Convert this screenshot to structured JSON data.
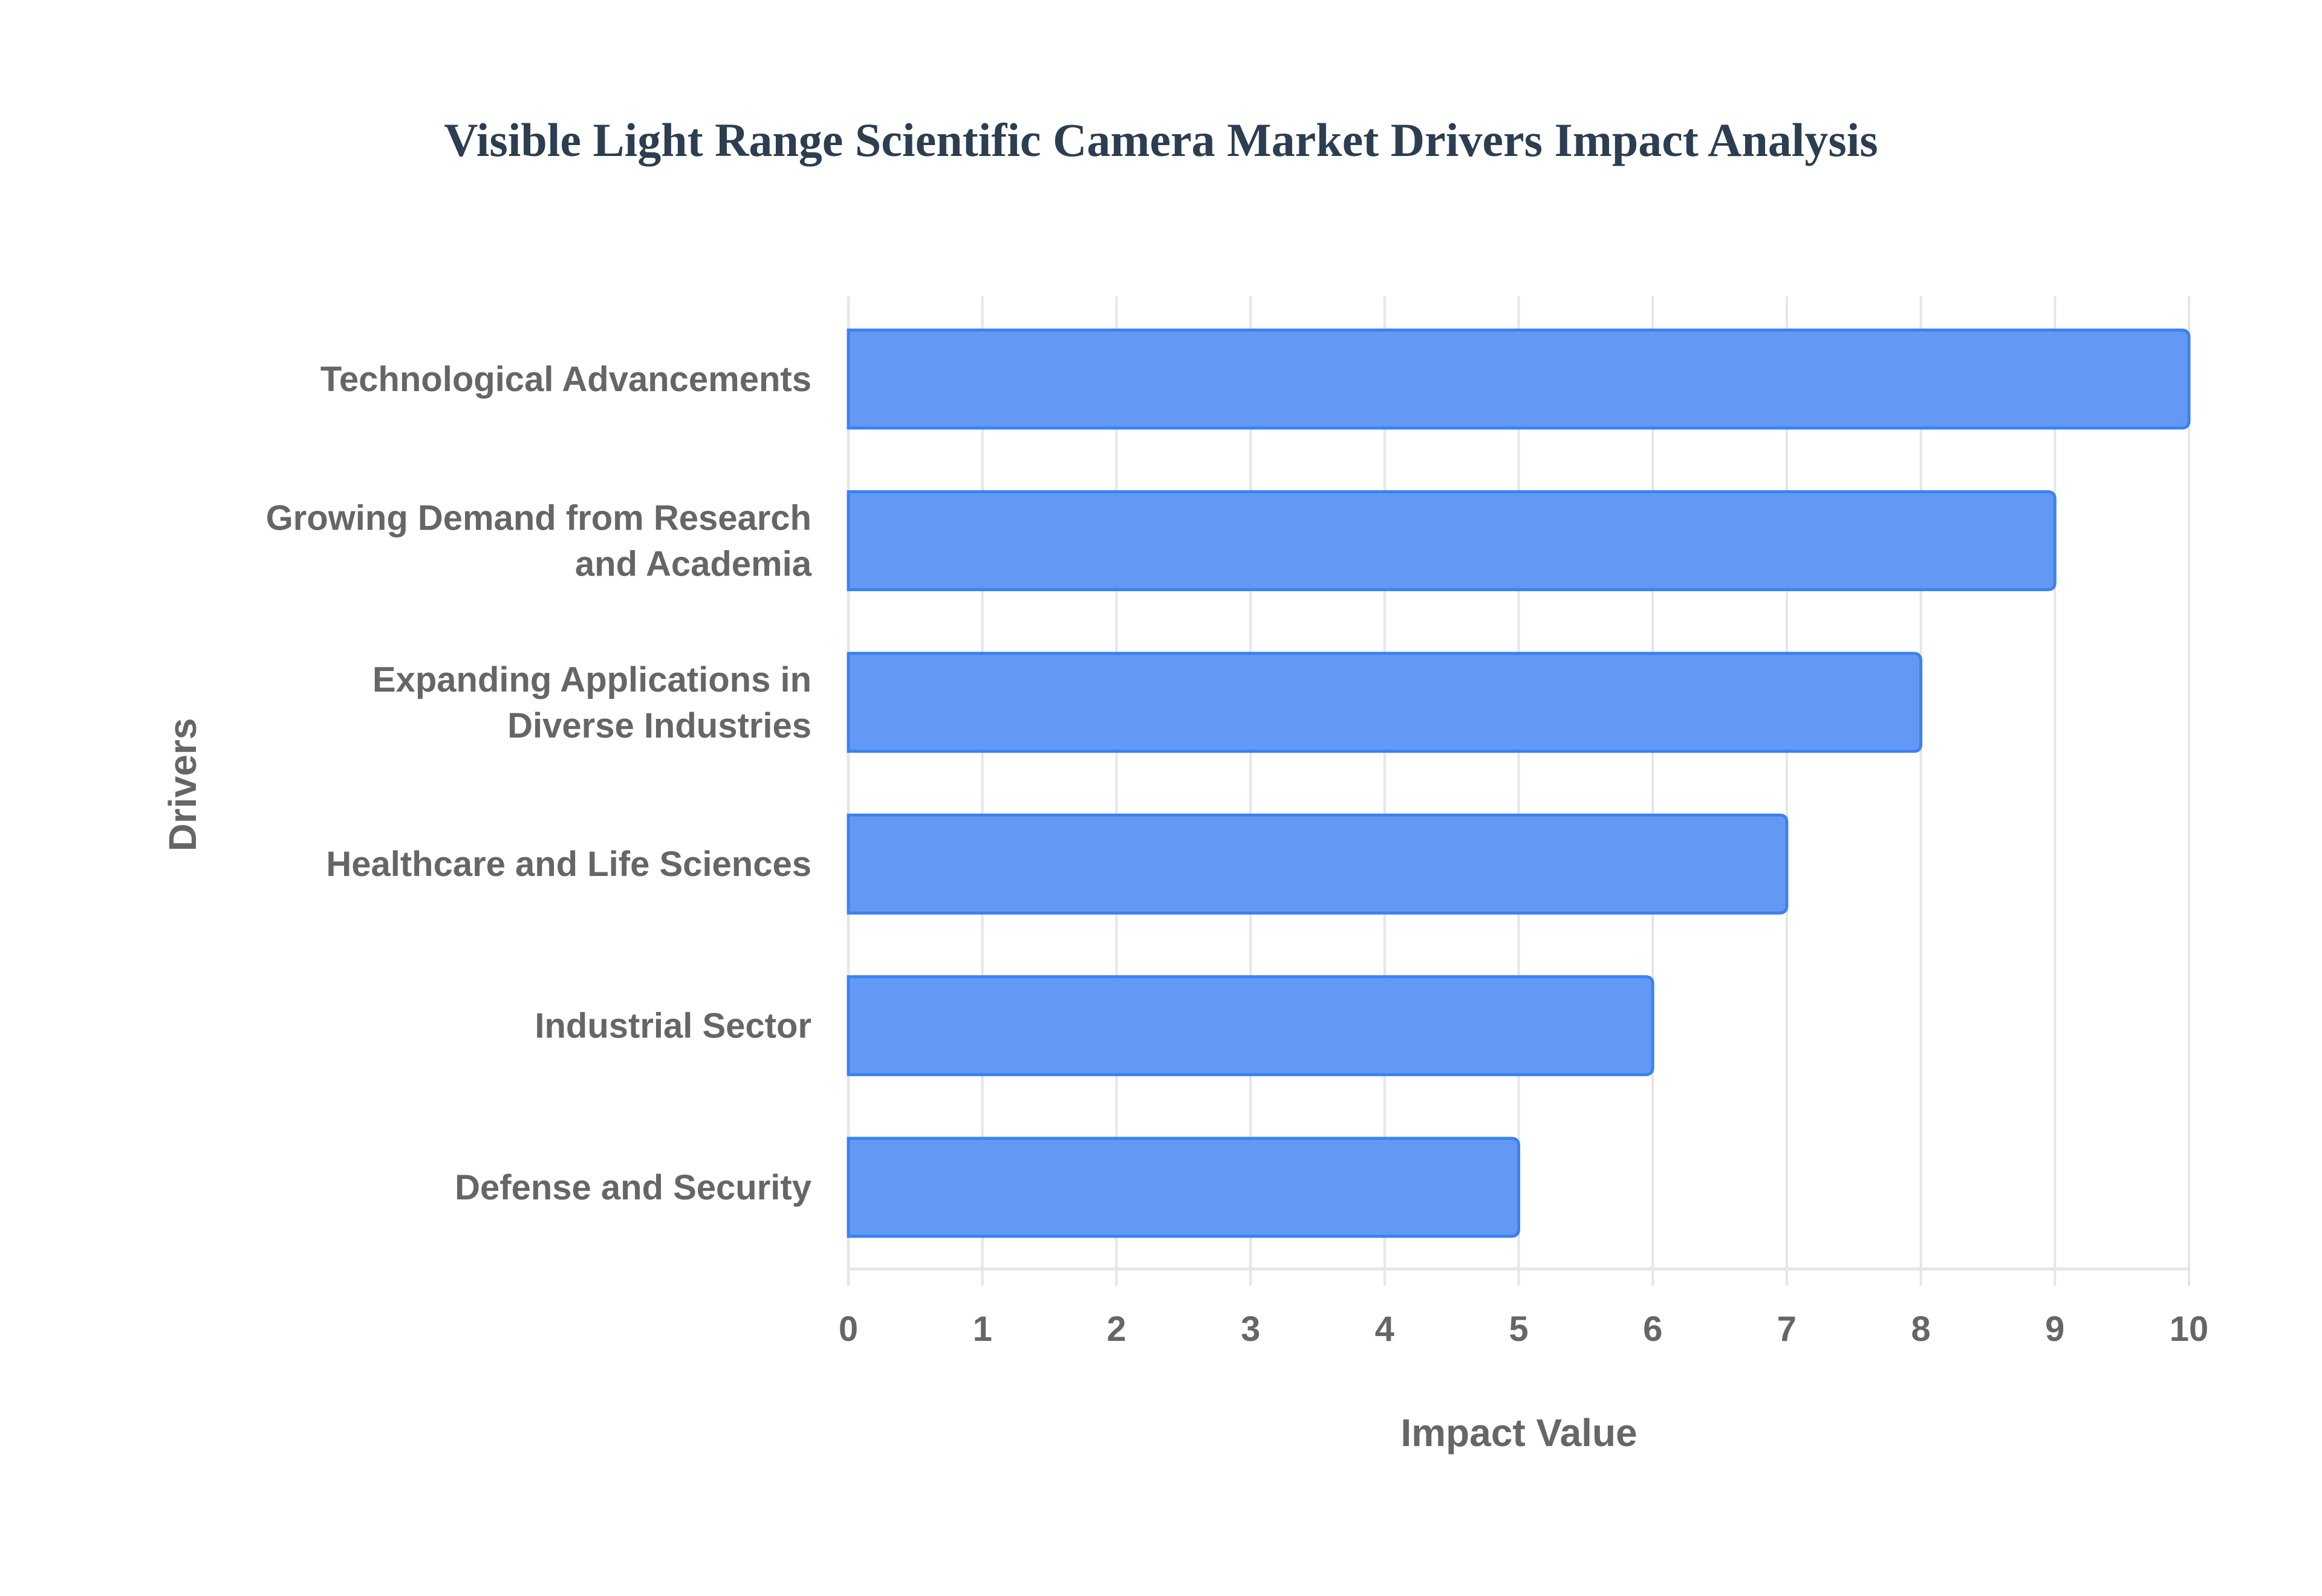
{
  "chart_data": {
    "type": "bar",
    "orientation": "horizontal",
    "title": "Visible Light Range Scientific Camera Market Drivers Impact Analysis",
    "xlabel": "Impact Value",
    "ylabel": "Drivers",
    "categories": [
      [
        "Technological Advancements"
      ],
      [
        "Growing Demand from Research",
        "and Academia"
      ],
      [
        "Expanding Applications in",
        "Diverse Industries"
      ],
      [
        "Healthcare and Life Sciences"
      ],
      [
        "Industrial Sector"
      ],
      [
        "Defense and Security"
      ]
    ],
    "values": [
      10,
      9,
      8,
      7,
      6,
      5
    ],
    "xlim": [
      0,
      10
    ],
    "xticks": [
      "0",
      "1",
      "2",
      "3",
      "4",
      "5",
      "6",
      "7",
      "8",
      "9",
      "10"
    ],
    "grid": true,
    "legend": "none",
    "colors": {
      "bar_fill": "#6399f5",
      "bar_border": "#3b82f0",
      "grid": "#e6e6e6",
      "text": "#666666",
      "title": "#2c3e50"
    }
  }
}
